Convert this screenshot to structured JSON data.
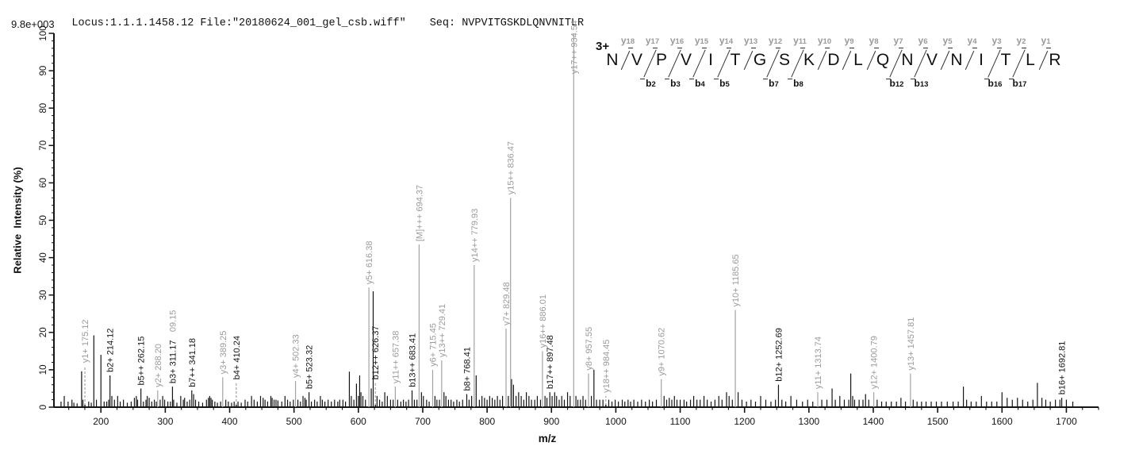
{
  "header": {
    "locus_file": "Locus:1.1.1.1458.12 File:\"20180624_001_gel_csb.wiff\"",
    "seq": "Seq: NVPVITGSKDLQNVNITLR",
    "scale": "9.8e+003"
  },
  "fragmentation": {
    "charge": "3+",
    "residues": [
      "N",
      "V",
      "P",
      "V",
      "I",
      "T",
      "G",
      "S",
      "K",
      "D",
      "L",
      "Q",
      "N",
      "V",
      "N",
      "I",
      "T",
      "L",
      "R"
    ],
    "y_labels": [
      "y18",
      "y17",
      "y16",
      "y15",
      "y14",
      "y13",
      "y12",
      "y11",
      "y10",
      "y9",
      "y8",
      "y7",
      "y6",
      "y5",
      "y4",
      "y3",
      "y2",
      "y1"
    ],
    "b_items": [
      [
        "b2",
        1
      ],
      [
        "b3",
        2
      ],
      [
        "b4",
        3
      ],
      [
        "b5",
        4
      ],
      [
        "b7",
        6
      ],
      [
        "b8",
        7
      ],
      [
        "b12",
        11
      ],
      [
        "b13",
        12
      ],
      [
        "b16",
        15
      ],
      [
        "b17",
        16
      ]
    ]
  },
  "chart_data": {
    "type": "bar",
    "subtype": "ms2-stick-spectrum",
    "title": "",
    "xlabel": "m/z",
    "ylabel": "Relative  Intensity (%)",
    "xlim": [
      127,
      1750
    ],
    "ylim": [
      0,
      100
    ],
    "intensity_scale": "9.8e+003",
    "x_tick_labels": [
      200,
      300,
      400,
      500,
      600,
      700,
      800,
      900,
      1000,
      1100,
      1200,
      1300,
      1400,
      1500,
      1600,
      1700
    ],
    "y_tick_labels": [
      0,
      10,
      20,
      30,
      40,
      50,
      60,
      70,
      80,
      90,
      100
    ],
    "labeled_peaks": [
      {
        "label": "y1+ 175.12",
        "mz": 175.12,
        "h": 11,
        "type": "y",
        "dashed": true
      },
      {
        "label": "b2+ 214.12",
        "mz": 214.12,
        "h": 8.5,
        "type": "b"
      },
      {
        "label": "b5++ 262.15",
        "mz": 262.15,
        "h": 5,
        "type": "b"
      },
      {
        "label": "y2+ 288.20",
        "mz": 288.2,
        "h": 4.5,
        "type": "y"
      },
      {
        "label": "b3+ 311.17",
        "mz": 311.17,
        "h": 5.5,
        "type": "b",
        "label2": "09.15"
      },
      {
        "label": "b7++ 341.18",
        "mz": 341.18,
        "h": 4.5,
        "type": "b"
      },
      {
        "label": "y3+ 389.25",
        "mz": 389.25,
        "h": 8,
        "type": "y"
      },
      {
        "label": "b4+ 410.24",
        "mz": 410.24,
        "h": 6.5,
        "type": "b",
        "dashed": true
      },
      {
        "label": "y4+ 502.33",
        "mz": 502.33,
        "h": 7,
        "type": "y"
      },
      {
        "label": "b5+ 523.32",
        "mz": 523.32,
        "h": 4,
        "type": "b"
      },
      {
        "label": "y5+ 616.38",
        "mz": 616.38,
        "h": 32,
        "type": "y"
      },
      {
        "label": "b12++ 626.37",
        "mz": 626.37,
        "h": 6.5,
        "type": "b",
        "dashed": true
      },
      {
        "label": "y11++ 657.38",
        "mz": 657.38,
        "h": 5.5,
        "type": "y"
      },
      {
        "label": "b13++ 683.41",
        "mz": 683.41,
        "h": 4.5,
        "type": "b"
      },
      {
        "label": "[M]+++ 694.37",
        "mz": 694.37,
        "h": 43.5,
        "type": "M"
      },
      {
        "label": "y6+ 715.45",
        "mz": 715.45,
        "h": 10,
        "type": "y"
      },
      {
        "label": "y13++ 729.41",
        "mz": 729.41,
        "h": 12.5,
        "type": "y"
      },
      {
        "label": "b8+ 768.41",
        "mz": 768.41,
        "h": 3.5,
        "type": "b"
      },
      {
        "label": "y14++ 779.93",
        "mz": 779.93,
        "h": 38,
        "type": "y"
      },
      {
        "label": "y7+ 829.48",
        "mz": 829.48,
        "h": 21,
        "type": "y"
      },
      {
        "label": "y15++ 836.47",
        "mz": 836.47,
        "h": 56,
        "type": "y"
      },
      {
        "label": "y16++ 886.01",
        "mz": 886.01,
        "h": 15,
        "type": "y"
      },
      {
        "label": "b17++ 897.48",
        "mz": 897.48,
        "h": 4,
        "type": "b"
      },
      {
        "label": "y17++ 934.54",
        "mz": 934.54,
        "h": 100,
        "type": "y"
      },
      {
        "label": "y8+ 957.55",
        "mz": 957.55,
        "h": 9,
        "type": "y"
      },
      {
        "label": "y18++ 984.45",
        "mz": 984.45,
        "h": 3,
        "type": "y",
        "dashed": true
      },
      {
        "label": "y9+ 1070.62",
        "mz": 1070.62,
        "h": 7.5,
        "type": "y"
      },
      {
        "label": "y10+ 1185.65",
        "mz": 1185.65,
        "h": 26,
        "type": "y"
      },
      {
        "label": "b12+ 1252.69",
        "mz": 1252.69,
        "h": 6,
        "type": "b"
      },
      {
        "label": "y11+ 1313.74",
        "mz": 1313.74,
        "h": 4,
        "type": "y"
      },
      {
        "label": "y12+ 1400.79",
        "mz": 1400.79,
        "h": 4,
        "type": "y"
      },
      {
        "label": "y13+ 1457.81",
        "mz": 1457.81,
        "h": 9,
        "type": "y"
      },
      {
        "label": "b16+ 1692.81",
        "mz": 1692.81,
        "h": 2.5,
        "type": "b"
      }
    ],
    "noise_peaks": [
      [
        138,
        1.5
      ],
      [
        143,
        3
      ],
      [
        149,
        1.5
      ],
      [
        155,
        2
      ],
      [
        158,
        1.2
      ],
      [
        163,
        1
      ],
      [
        170,
        9.6
      ],
      [
        172,
        2
      ],
      [
        181,
        1.5
      ],
      [
        185,
        1.2
      ],
      [
        189,
        19.2
      ],
      [
        193,
        2
      ],
      [
        200,
        14
      ],
      [
        205,
        1.5
      ],
      [
        209,
        1.5
      ],
      [
        212,
        2
      ],
      [
        217,
        3
      ],
      [
        221,
        2
      ],
      [
        226,
        3
      ],
      [
        230,
        1.5
      ],
      [
        235,
        2
      ],
      [
        241,
        1.2
      ],
      [
        247,
        1.5
      ],
      [
        252,
        2.5
      ],
      [
        255,
        3
      ],
      [
        257,
        2
      ],
      [
        266,
        1.5
      ],
      [
        270,
        2
      ],
      [
        272,
        3
      ],
      [
        275,
        2.5
      ],
      [
        279,
        1.5
      ],
      [
        283,
        2
      ],
      [
        286,
        1.5
      ],
      [
        292,
        2
      ],
      [
        296,
        3
      ],
      [
        299,
        2
      ],
      [
        304,
        1.5
      ],
      [
        308,
        1.5
      ],
      [
        313,
        2
      ],
      [
        318,
        1.2
      ],
      [
        324,
        3
      ],
      [
        328,
        2
      ],
      [
        330,
        2.5
      ],
      [
        334,
        1.5
      ],
      [
        338,
        2
      ],
      [
        344,
        3.5
      ],
      [
        347,
        2
      ],
      [
        352,
        1.5
      ],
      [
        358,
        1.2
      ],
      [
        364,
        2
      ],
      [
        367,
        2.5
      ],
      [
        369,
        3
      ],
      [
        371,
        2.5
      ],
      [
        373,
        2
      ],
      [
        377,
        1.5
      ],
      [
        381,
        1.2
      ],
      [
        386,
        1.5
      ],
      [
        394,
        2
      ],
      [
        398,
        1.5
      ],
      [
        403,
        1.2
      ],
      [
        407,
        1.5
      ],
      [
        413,
        1.5
      ],
      [
        418,
        1.2
      ],
      [
        424,
        2
      ],
      [
        428,
        1.5
      ],
      [
        434,
        3
      ],
      [
        438,
        2
      ],
      [
        443,
        1.5
      ],
      [
        448,
        3
      ],
      [
        452,
        2.5
      ],
      [
        455,
        2
      ],
      [
        459,
        1.5
      ],
      [
        464,
        3
      ],
      [
        466,
        2.5
      ],
      [
        469,
        2
      ],
      [
        472,
        2
      ],
      [
        475,
        1.8
      ],
      [
        481,
        1.5
      ],
      [
        486,
        3
      ],
      [
        490,
        2
      ],
      [
        494,
        1.5
      ],
      [
        499,
        2
      ],
      [
        506,
        2
      ],
      [
        510,
        1.5
      ],
      [
        514,
        3
      ],
      [
        517,
        2.5
      ],
      [
        519,
        2
      ],
      [
        527,
        1.5
      ],
      [
        532,
        2
      ],
      [
        536,
        1.5
      ],
      [
        541,
        3
      ],
      [
        544,
        2
      ],
      [
        548,
        1.5
      ],
      [
        553,
        2
      ],
      [
        558,
        1.5
      ],
      [
        563,
        2
      ],
      [
        568,
        1.5
      ],
      [
        571,
        2
      ],
      [
        576,
        2
      ],
      [
        580,
        1.5
      ],
      [
        586,
        9.5
      ],
      [
        589,
        3
      ],
      [
        593,
        2
      ],
      [
        597,
        6.3
      ],
      [
        600,
        3
      ],
      [
        602,
        8.5
      ],
      [
        604,
        4
      ],
      [
        607,
        3
      ],
      [
        611,
        2
      ],
      [
        620,
        5
      ],
      [
        623,
        31
      ],
      [
        629,
        3
      ],
      [
        633,
        2
      ],
      [
        637,
        1.5
      ],
      [
        641,
        4
      ],
      [
        645,
        3
      ],
      [
        650,
        2
      ],
      [
        654,
        2
      ],
      [
        661,
        2
      ],
      [
        666,
        1.5
      ],
      [
        670,
        2
      ],
      [
        674,
        1.5
      ],
      [
        678,
        2
      ],
      [
        687,
        2
      ],
      [
        691,
        2
      ],
      [
        698,
        4
      ],
      [
        701,
        3
      ],
      [
        706,
        2
      ],
      [
        710,
        1.5
      ],
      [
        719,
        3
      ],
      [
        722,
        2
      ],
      [
        726,
        2
      ],
      [
        733,
        4
      ],
      [
        736,
        3
      ],
      [
        740,
        2
      ],
      [
        744,
        2
      ],
      [
        748,
        1.5
      ],
      [
        753,
        2
      ],
      [
        757,
        1.5
      ],
      [
        762,
        2
      ],
      [
        772,
        2
      ],
      [
        776,
        3
      ],
      [
        783,
        8.5
      ],
      [
        788,
        2
      ],
      [
        792,
        3
      ],
      [
        796,
        2.5
      ],
      [
        800,
        2
      ],
      [
        804,
        3
      ],
      [
        808,
        2.5
      ],
      [
        812,
        2
      ],
      [
        816,
        3
      ],
      [
        820,
        2
      ],
      [
        824,
        3
      ],
      [
        833,
        3
      ],
      [
        838,
        7.5
      ],
      [
        841,
        6
      ],
      [
        845,
        3
      ],
      [
        849,
        4
      ],
      [
        853,
        3
      ],
      [
        857,
        2
      ],
      [
        861,
        4
      ],
      [
        865,
        3
      ],
      [
        869,
        2
      ],
      [
        874,
        2
      ],
      [
        878,
        3
      ],
      [
        883,
        2
      ],
      [
        890,
        3
      ],
      [
        893,
        2.5
      ],
      [
        901,
        3
      ],
      [
        905,
        4
      ],
      [
        908,
        3
      ],
      [
        912,
        2
      ],
      [
        916,
        3
      ],
      [
        920,
        2
      ],
      [
        925,
        4
      ],
      [
        929,
        3
      ],
      [
        938,
        3
      ],
      [
        941,
        2
      ],
      [
        945,
        2
      ],
      [
        949,
        3
      ],
      [
        953,
        2
      ],
      [
        962,
        3
      ],
      [
        966,
        10
      ],
      [
        970,
        2
      ],
      [
        975,
        2
      ],
      [
        980,
        2
      ],
      [
        989,
        2
      ],
      [
        994,
        1.5
      ],
      [
        999,
        2
      ],
      [
        1004,
        1.5
      ],
      [
        1010,
        2
      ],
      [
        1014,
        1.5
      ],
      [
        1019,
        2
      ],
      [
        1023,
        1.5
      ],
      [
        1028,
        2
      ],
      [
        1034,
        1.5
      ],
      [
        1040,
        2
      ],
      [
        1046,
        1.5
      ],
      [
        1052,
        2
      ],
      [
        1057,
        1.5
      ],
      [
        1063,
        2
      ],
      [
        1075,
        3
      ],
      [
        1079,
        2
      ],
      [
        1083,
        2.5
      ],
      [
        1087,
        2
      ],
      [
        1091,
        3
      ],
      [
        1095,
        2
      ],
      [
        1100,
        2
      ],
      [
        1106,
        2
      ],
      [
        1110,
        1.5
      ],
      [
        1116,
        2
      ],
      [
        1121,
        3
      ],
      [
        1126,
        2
      ],
      [
        1131,
        2
      ],
      [
        1137,
        3
      ],
      [
        1142,
        2
      ],
      [
        1148,
        1.5
      ],
      [
        1154,
        2
      ],
      [
        1160,
        3
      ],
      [
        1165,
        2
      ],
      [
        1172,
        4
      ],
      [
        1176,
        3
      ],
      [
        1181,
        2
      ],
      [
        1190,
        4
      ],
      [
        1196,
        2
      ],
      [
        1203,
        1.5
      ],
      [
        1210,
        2
      ],
      [
        1217,
        1.5
      ],
      [
        1225,
        3
      ],
      [
        1233,
        2
      ],
      [
        1241,
        1.5
      ],
      [
        1248,
        2
      ],
      [
        1258,
        2
      ],
      [
        1264,
        1.5
      ],
      [
        1272,
        3
      ],
      [
        1281,
        2
      ],
      [
        1290,
        1.5
      ],
      [
        1298,
        2
      ],
      [
        1306,
        1.5
      ],
      [
        1320,
        2
      ],
      [
        1328,
        2
      ],
      [
        1336,
        5
      ],
      [
        1341,
        2
      ],
      [
        1348,
        3
      ],
      [
        1355,
        2
      ],
      [
        1362,
        2
      ],
      [
        1365,
        9
      ],
      [
        1368,
        3
      ],
      [
        1371,
        2
      ],
      [
        1378,
        2
      ],
      [
        1384,
        2
      ],
      [
        1388,
        3.5
      ],
      [
        1393,
        2
      ],
      [
        1406,
        2
      ],
      [
        1413,
        1.5
      ],
      [
        1420,
        1.5
      ],
      [
        1428,
        1.5
      ],
      [
        1436,
        1.5
      ],
      [
        1443,
        2.5
      ],
      [
        1450,
        1.5
      ],
      [
        1462,
        2
      ],
      [
        1468,
        1.5
      ],
      [
        1475,
        1.5
      ],
      [
        1482,
        1.5
      ],
      [
        1490,
        1.5
      ],
      [
        1498,
        1.5
      ],
      [
        1506,
        1.5
      ],
      [
        1515,
        1.5
      ],
      [
        1524,
        1.5
      ],
      [
        1532,
        1.5
      ],
      [
        1540,
        5.5
      ],
      [
        1545,
        2
      ],
      [
        1552,
        1.5
      ],
      [
        1560,
        1.5
      ],
      [
        1568,
        3
      ],
      [
        1576,
        1.5
      ],
      [
        1584,
        1.5
      ],
      [
        1592,
        1.5
      ],
      [
        1600,
        4
      ],
      [
        1608,
        2.5
      ],
      [
        1616,
        2
      ],
      [
        1624,
        2.5
      ],
      [
        1632,
        2
      ],
      [
        1640,
        1.5
      ],
      [
        1648,
        2
      ],
      [
        1655,
        6.5
      ],
      [
        1662,
        2.5
      ],
      [
        1668,
        2
      ],
      [
        1675,
        1.5
      ],
      [
        1683,
        2
      ],
      [
        1690,
        2
      ],
      [
        1700,
        2
      ],
      [
        1710,
        1.5
      ]
    ],
    "legend": null,
    "grid": false
  }
}
